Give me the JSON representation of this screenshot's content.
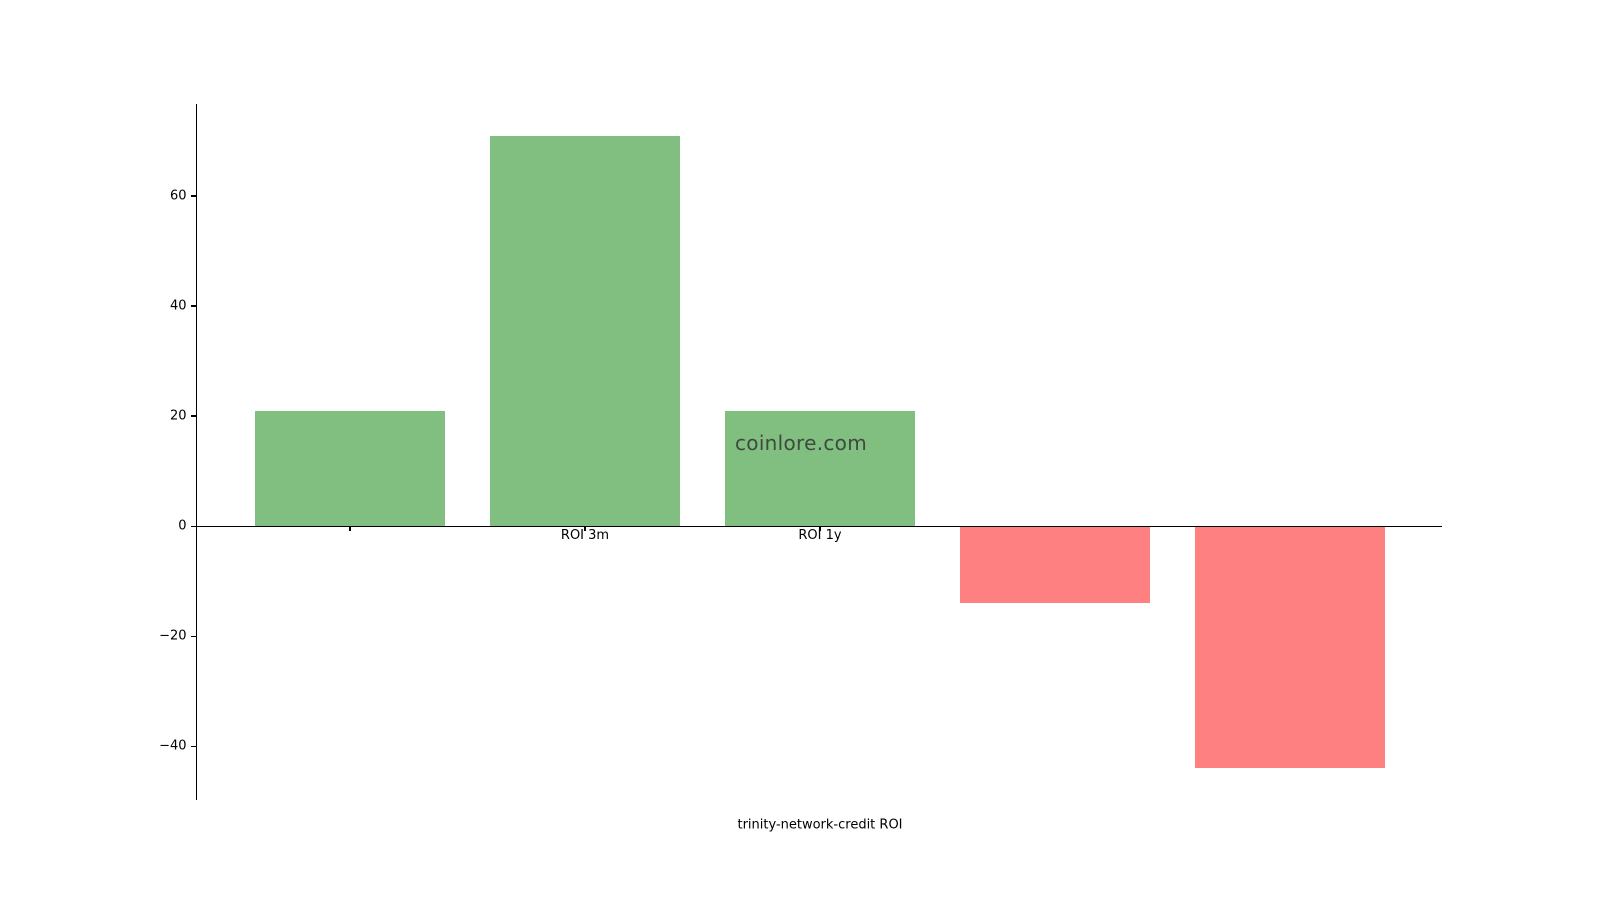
{
  "page": {
    "background": "#ffffff"
  },
  "watermark": {
    "text": "coinlore.com",
    "color": "#343a34"
  },
  "chart_data": {
    "type": "bar",
    "title": "trinity-network-credit ROI",
    "xlabel": "trinity-network-credit ROI",
    "ylabel": "",
    "categories": [
      "",
      "ROI 3m",
      "ROI 1y",
      "",
      ""
    ],
    "values": [
      21,
      71,
      21,
      -14,
      -44
    ],
    "bar_colors": [
      "#80bf80",
      "#80bf80",
      "#80bf80",
      "#ff8080",
      "#ff8080"
    ],
    "positive_color": "#80bf80",
    "negative_color": "#ff8080",
    "yticks": [
      60,
      40,
      20,
      0,
      -20,
      -40
    ],
    "ylim": [
      -49.75,
      76.75
    ],
    "axis_color": "#000000",
    "grid": false,
    "legend_position": "none"
  }
}
